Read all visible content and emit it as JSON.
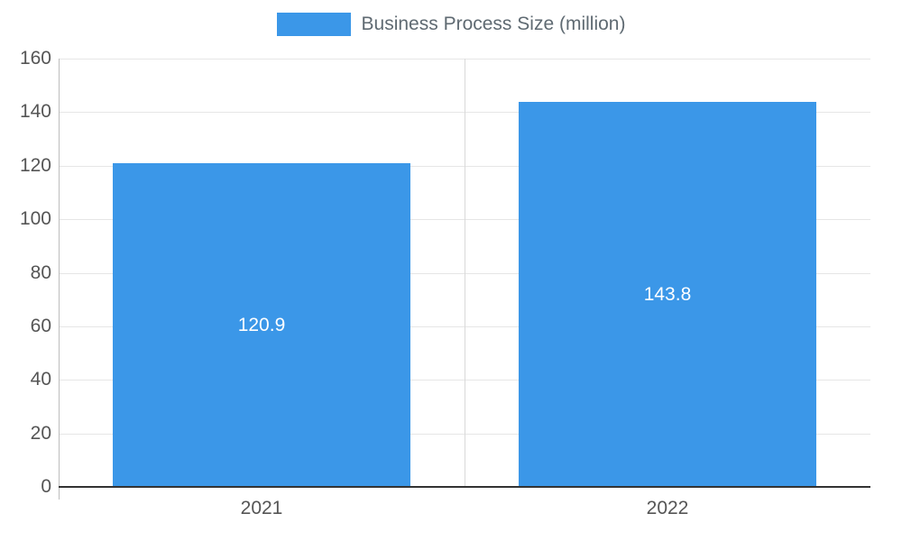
{
  "legend": {
    "label": "Business Process Size (million)",
    "swatch_color": "#3b97e8"
  },
  "chart_data": {
    "type": "bar",
    "categories": [
      "2021",
      "2022"
    ],
    "series": [
      {
        "name": "Business Process Size (million)",
        "values": [
          120.9,
          143.8
        ]
      }
    ],
    "value_labels": [
      "120.9",
      "143.8"
    ],
    "title": "",
    "xlabel": "",
    "ylabel": "",
    "ylim": [
      0,
      160
    ],
    "ytick_step": 20,
    "yticks": [
      0,
      20,
      40,
      60,
      80,
      100,
      120,
      140,
      160
    ],
    "bar_color": "#3b97e8",
    "value_label_color": "#ffffff",
    "grid": true,
    "legend_position": "top"
  }
}
